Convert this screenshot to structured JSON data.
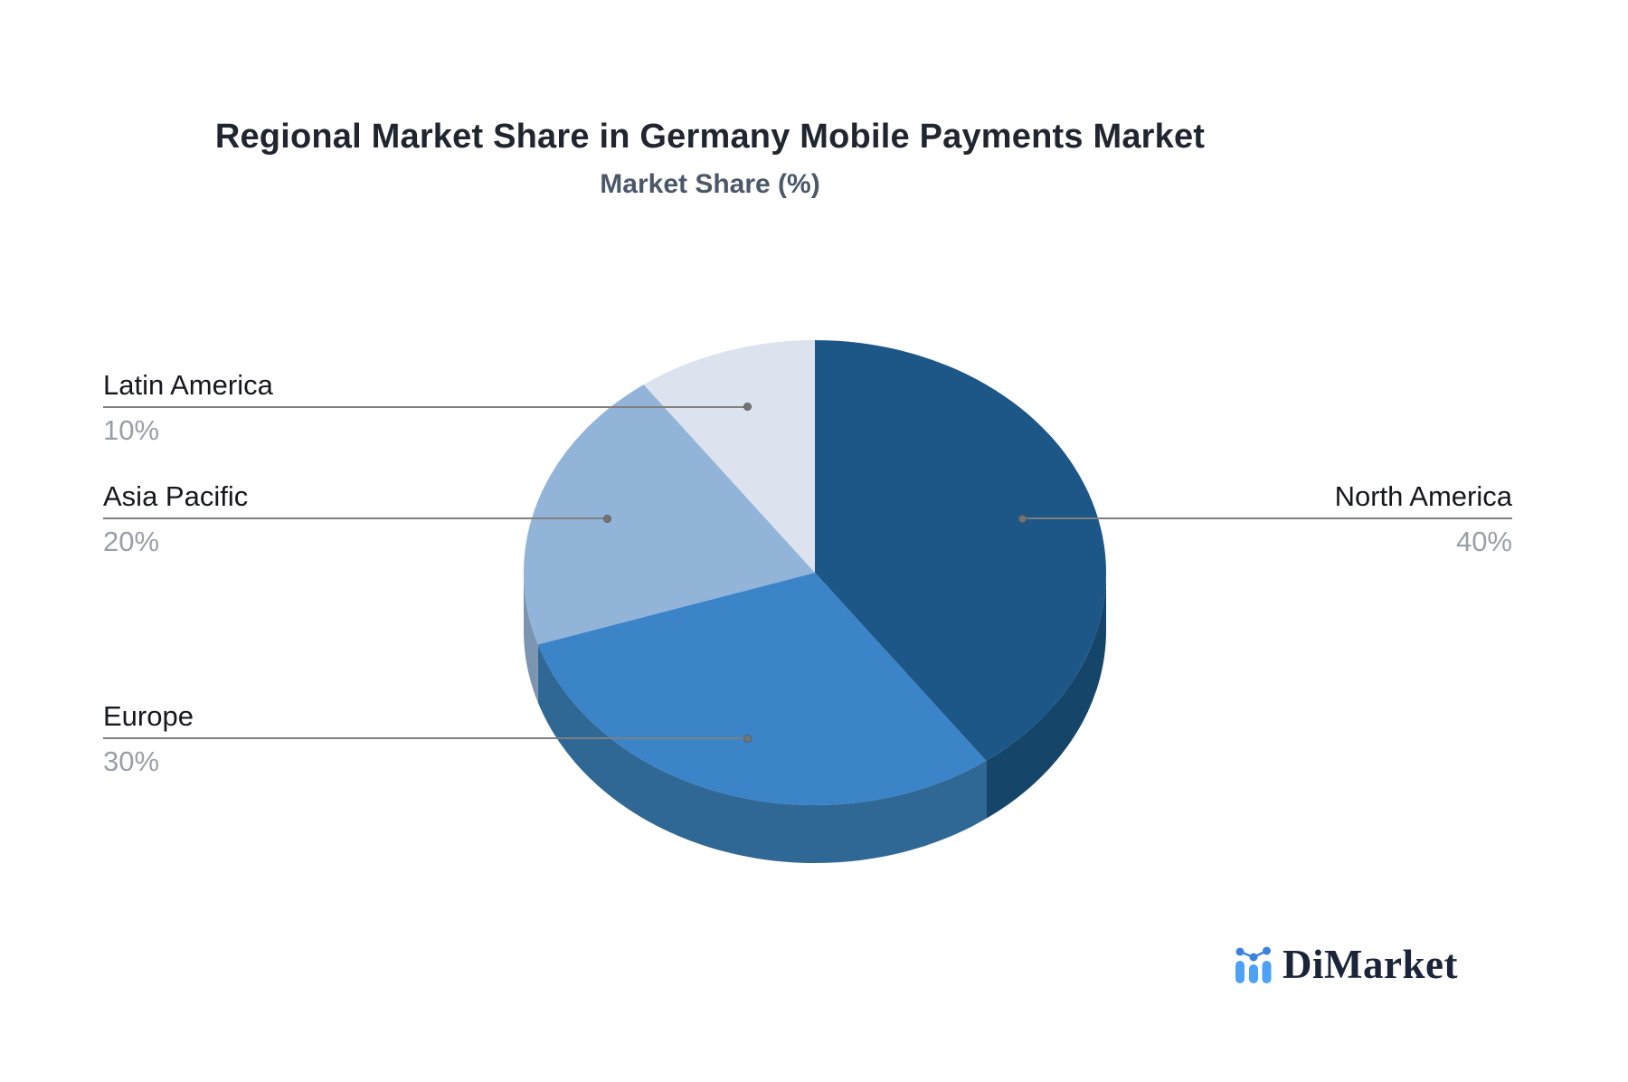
{
  "page": {
    "background": "#ffffff"
  },
  "header": {
    "title": "Regional Market Share in Germany Mobile Payments Market",
    "subtitle": "Market Share (%)"
  },
  "brand": {
    "name": "DiMarket",
    "icon": "bar-line-chart-icon",
    "text_color": "#1b2438",
    "bar_color": "#4da2f6",
    "accent_color": "#3b82e0"
  },
  "chart_data": {
    "type": "pie",
    "style": "3d-depth",
    "title": "Regional Market Share in Germany Mobile Payments Market",
    "subtitle": "Market Share (%)",
    "unit": "%",
    "start_angle_clockwise_from_top_deg": 0,
    "legend": "none",
    "label_line_color": "#7f7f7f",
    "label_text_color": "#16181d",
    "value_text_color": "#9aa0a8",
    "slices": [
      {
        "label": "North America",
        "value": 40,
        "display_value": "40%",
        "color": "#1d5787",
        "side_color": "#16456a",
        "callout_side": "right"
      },
      {
        "label": "Europe",
        "value": 30,
        "display_value": "30%",
        "color": "#3b84c8",
        "side_color": "#2f6795",
        "callout_side": "left"
      },
      {
        "label": "Asia Pacific",
        "value": 20,
        "display_value": "20%",
        "color": "#92b4d8",
        "side_color": "#7b94b0",
        "callout_side": "left"
      },
      {
        "label": "Latin America",
        "value": 10,
        "display_value": "10%",
        "color": "#dce3ef",
        "side_color": "#b9c4d6",
        "callout_side": "left"
      }
    ]
  }
}
